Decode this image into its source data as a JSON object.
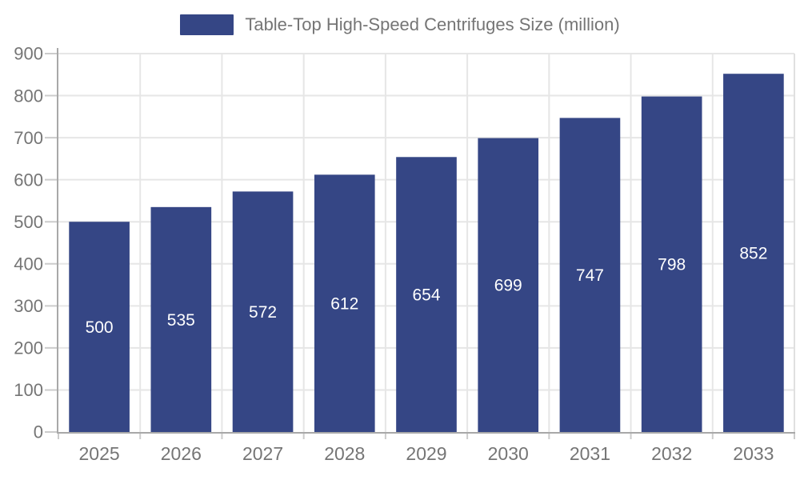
{
  "legend": {
    "label": "Table-Top High-Speed Centrifuges Size (million)"
  },
  "chart_data": {
    "type": "bar",
    "title": "Table-Top High-Speed Centrifuges Size (million)",
    "categories": [
      "2025",
      "2026",
      "2027",
      "2028",
      "2029",
      "2030",
      "2031",
      "2032",
      "2033"
    ],
    "values": [
      500,
      535,
      572,
      612,
      654,
      699,
      747,
      798,
      852
    ],
    "xlabel": "",
    "ylabel": "",
    "ylim": [
      0,
      900
    ],
    "yticks": [
      0,
      100,
      200,
      300,
      400,
      500,
      600,
      700,
      800,
      900
    ],
    "grid": true,
    "legend_position": "top-center",
    "bar_labels_inside": true
  },
  "colors": {
    "bar": "#354685",
    "bar_label": "#ffffff",
    "axis_text": "#757575",
    "grid_line": "#e6e6e6",
    "tick_line": "#cccccc",
    "axis_spine": "#a8a8a8",
    "right_spine": "#e0e0e0",
    "background": "#ffffff"
  }
}
